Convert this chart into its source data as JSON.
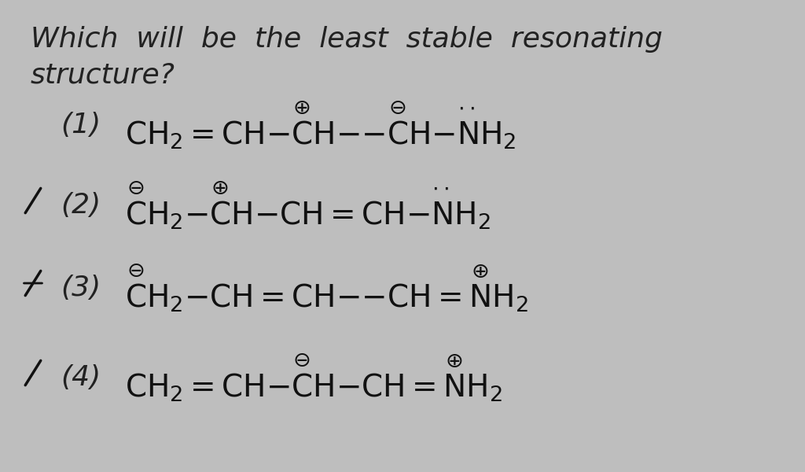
{
  "background_color": "#bebebe",
  "title_color": "#222222",
  "formula_color": "#111111",
  "title_fontsize": 26,
  "formula_fontsize": 28,
  "number_fontsize": 26,
  "options": [
    {
      "number": "(1)",
      "has_tick": false,
      "formula": "$\\rm CH_2{=}CH{-}\\overset{\\oplus}{C}H{-}{-}\\overset{\\ominus}{C}H{-}\\overset{\\cdot\\cdot}{N}H_2$"
    },
    {
      "number": "(2)",
      "has_tick": true,
      "tick_style": "slash_left",
      "formula": "$\\rm \\overset{\\ominus}{C}H_2{-}\\overset{\\oplus}{C}H{-}CH{=}CH{-}\\overset{\\cdot\\cdot}{N}H_2$"
    },
    {
      "number": "(3)",
      "has_tick": true,
      "tick_style": "cross",
      "formula": "$\\rm \\overset{\\ominus}{C}H_2{-}CH{=}CH{-}{-}CH{=}\\overset{\\oplus}{N}H_2$"
    },
    {
      "number": "(4)",
      "has_tick": true,
      "tick_style": "slash_left",
      "formula": "$\\rm CH_2{=}CH{-}\\overset{\\ominus}{C}H{-}CH{=}\\overset{\\oplus}{N}H_2$"
    }
  ]
}
